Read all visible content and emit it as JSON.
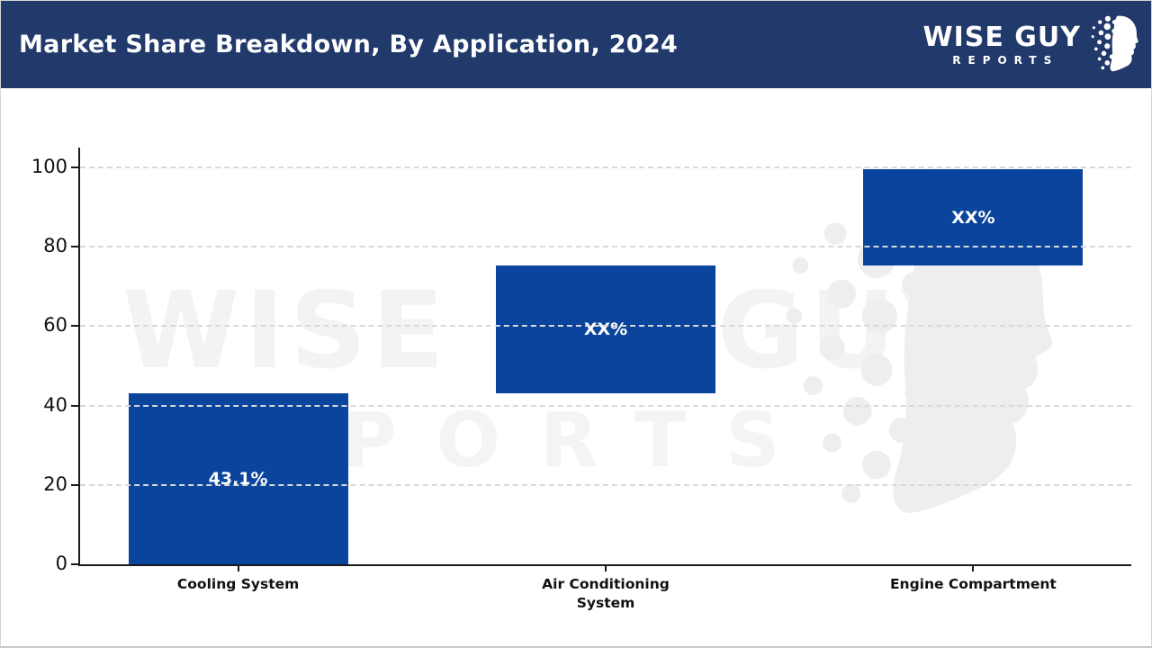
{
  "header": {
    "bg_color": "#213a6b",
    "title": "Market Share Breakdown, By Application, 2024",
    "logo": {
      "wordmark": "WISE GUY",
      "subtitle": "REPORTS"
    }
  },
  "watermark": {
    "wordmark": "WISE GUY",
    "subtitle": "REPORTS",
    "color": "#f3f3f3"
  },
  "chart_data": {
    "type": "bar",
    "variant": "floating-segment (stacked waterfall-style share breakdown)",
    "title": "Market Share Breakdown, By Application, 2024",
    "categories": [
      "Cooling System",
      "Air Conditioning System",
      "Engine Compartment"
    ],
    "segments": [
      {
        "category": "Cooling System",
        "start": 0,
        "end": 43.1,
        "label": "43.1%"
      },
      {
        "category": "Air Conditioning System",
        "start": 43.1,
        "end": 75.2,
        "label": "XX%"
      },
      {
        "category": "Engine Compartment",
        "start": 75.2,
        "end": 99.6,
        "label": "XX%"
      }
    ],
    "bar_color": "#0a449c",
    "label_color": "#ffffff",
    "xlabel": "",
    "ylabel": "",
    "ylim": [
      0,
      105
    ],
    "yticks": [
      0,
      20,
      40,
      60,
      80,
      100
    ],
    "grid": "horizontal-dashed",
    "legend": "none"
  }
}
